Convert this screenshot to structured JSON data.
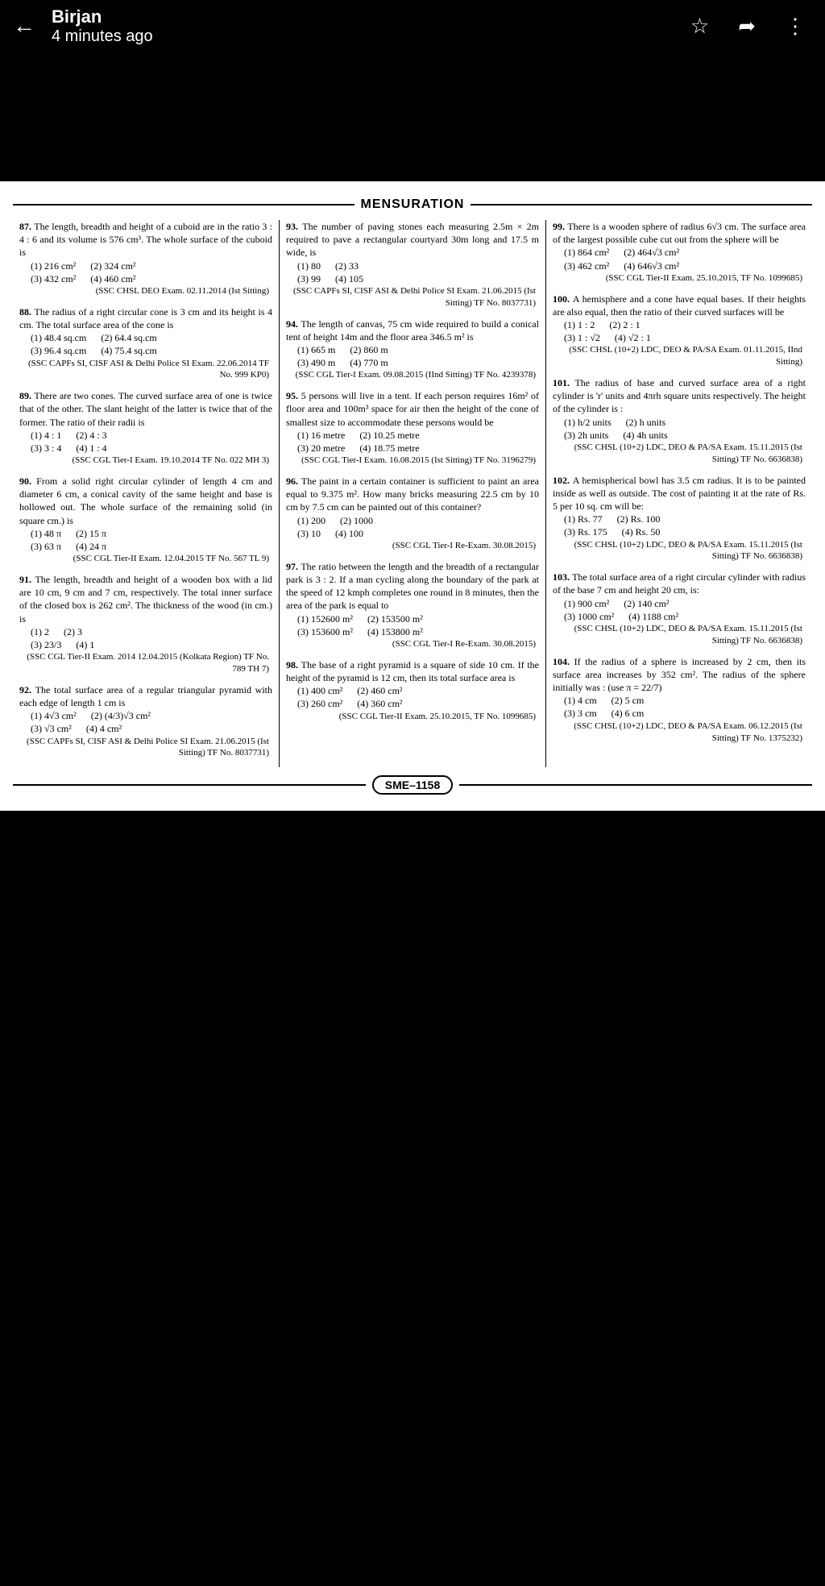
{
  "topbar": {
    "title": "Birjan",
    "time": "4 minutes ago"
  },
  "section_title": "MENSURATION",
  "footer": "SME–1158",
  "columns": [
    [
      {
        "num": "87.",
        "text": "The length, breadth and height of a cuboid are in the ratio 3 : 4 : 6 and its volume is 576 cm³. The whole surface of the cuboid is",
        "opts": [
          [
            "(1) 216 cm²",
            "(2) 324 cm²"
          ],
          [
            "(3) 432 cm²",
            "(4) 460 cm²"
          ]
        ],
        "source": "(SSC CHSL DEO Exam. 02.11.2014 (Ist Sitting)"
      },
      {
        "num": "88.",
        "text": "The radius of a right circular cone is 3 cm and its height is 4 cm. The total surface area of the cone is",
        "opts": [
          [
            "(1) 48.4 sq.cm",
            "(2) 64.4 sq.cm"
          ],
          [
            "(3) 96.4 sq.cm",
            "(4) 75.4 sq.cm"
          ]
        ],
        "source": "(SSC CAPFs SI, CISF ASI & Delhi Police SI Exam. 22.06.2014 TF No. 999 KP0)"
      },
      {
        "num": "89.",
        "text": "There are two cones. The curved surface area of one is twice that of the other. The slant height of the latter is twice that of the former. The ratio of their radii is",
        "opts": [
          [
            "(1) 4 : 1",
            "(2) 4 : 3"
          ],
          [
            "(3) 3 : 4",
            "(4) 1 : 4"
          ]
        ],
        "source": "(SSC CGL Tier-I Exam. 19.10.2014 TF No. 022 MH 3)"
      },
      {
        "num": "90.",
        "text": "From a solid right circular cylinder of length 4 cm and diameter 6 cm, a conical cavity of the same height and base is hollowed out. The whole surface of the remaining solid (in square cm.) is",
        "opts": [
          [
            "(1) 48 π",
            "(2) 15 π"
          ],
          [
            "(3) 63 π",
            "(4) 24 π"
          ]
        ],
        "source": "(SSC CGL Tier-II Exam. 12.04.2015 TF No. 567 TL 9)"
      },
      {
        "num": "91.",
        "text": "The length, breadth and height of a wooden box with a lid are 10 cm, 9 cm and 7 cm, respectively. The total inner surface of the closed box is 262 cm². The thickness of the wood (in cm.) is",
        "opts": [
          [
            "(1) 2",
            "(2) 3"
          ],
          [
            "(3) 23/3",
            "(4) 1"
          ]
        ],
        "source": "(SSC CGL Tier-II Exam. 2014 12.04.2015 (Kolkata Region) TF No. 789 TH 7)"
      },
      {
        "num": "92.",
        "text": "The total surface area of a regular triangular pyramid with each edge of length 1 cm is",
        "opts": [
          [
            "(1) 4√3 cm²",
            "(2) (4/3)√3 cm²"
          ],
          [
            "(3) √3 cm²",
            "(4) 4 cm²"
          ]
        ],
        "source": "(SSC CAPFs SI, CISF ASI & Delhi Police SI Exam. 21.06.2015 (Ist Sitting) TF No. 8037731)"
      }
    ],
    [
      {
        "num": "93.",
        "text": "The number of paving stones each measuring 2.5m × 2m required to pave a rectangular courtyard 30m long and 17.5 m wide, is",
        "opts": [
          [
            "(1) 80",
            "(2) 33"
          ],
          [
            "(3) 99",
            "(4) 105"
          ]
        ],
        "source": "(SSC CAPFs SI, CISF ASI & Delhi Police SI Exam. 21.06.2015 (Ist Sitting) TF No. 8037731)"
      },
      {
        "num": "94.",
        "text": "The length of canvas, 75 cm wide required to build a conical tent of height 14m and the floor area 346.5 m² is",
        "opts": [
          [
            "(1) 665 m",
            "(2) 860 m"
          ],
          [
            "(3) 490 m",
            "(4) 770 m"
          ]
        ],
        "source": "(SSC CGL Tier-I Exam. 09.08.2015 (IInd Sitting) TF No. 4239378)"
      },
      {
        "num": "95.",
        "text": "5 persons will live in a tent. If each person requires 16m² of floor area and 100m³ space for air then the height of the cone of smallest size to accommodate these persons would be",
        "opts": [
          [
            "(1) 16 metre",
            "(2) 10.25 metre"
          ],
          [
            "(3) 20 metre",
            "(4) 18.75 metre"
          ]
        ],
        "source": "(SSC CGL Tier-I Exam. 16.08.2015 (Ist Sitting) TF No. 3196279)"
      },
      {
        "num": "96.",
        "text": "The paint in a certain container is sufficient to paint an area equal to 9.375 m². How many bricks measuring 22.5 cm by 10 cm by 7.5 cm can be painted out of this container?",
        "opts": [
          [
            "(1) 200",
            "(2) 1000"
          ],
          [
            "(3) 10",
            "(4) 100"
          ]
        ],
        "source": "(SSC CGL Tier-I Re-Exam. 30.08.2015)"
      },
      {
        "num": "97.",
        "text": "The ratio between the length and the breadth of a rectangular park is 3 : 2. If a man cycling along the boundary of the park at the speed of 12 kmph completes one round in 8 minutes, then the area of the park is equal to",
        "opts": [
          [
            "(1) 152600 m²",
            "(2) 153500 m²"
          ],
          [
            "(3) 153600 m²",
            "(4) 153800 m²"
          ]
        ],
        "source": "(SSC CGL Tier-I Re-Exam. 30.08.2015)"
      },
      {
        "num": "98.",
        "text": "The base of a right pyramid is a square of side 10 cm. If the height of the pyramid is 12 cm, then its total surface area is",
        "opts": [
          [
            "(1) 400 cm²",
            "(2) 460 cm²"
          ],
          [
            "(3) 260 cm²",
            "(4) 360 cm²"
          ]
        ],
        "source": "(SSC CGL Tier-II Exam. 25.10.2015, TF No. 1099685)"
      }
    ],
    [
      {
        "num": "99.",
        "text": "There is a wooden sphere of radius 6√3 cm. The surface area of the largest possible cube cut out from the sphere will be",
        "opts": [
          [
            "(1) 864 cm²",
            "(2) 464√3 cm²"
          ],
          [
            "(3) 462 cm²",
            "(4) 646√3 cm²"
          ]
        ],
        "source": "(SSC CGL Tier-II Exam. 25.10.2015, TF No. 1099685)"
      },
      {
        "num": "100.",
        "text": "A hemisphere and a cone have equal bases. If their heights are also equal, then the ratio of their curved surfaces will be",
        "opts": [
          [
            "(1) 1 : 2",
            "(2) 2 : 1"
          ],
          [
            "(3) 1 : √2",
            "(4) √2 : 1"
          ]
        ],
        "source": "(SSC CHSL (10+2) LDC, DEO & PA/SA Exam. 01.11.2015, IInd Sitting)"
      },
      {
        "num": "101.",
        "text": "The radius of base and curved surface area of a right cylinder is 'r' units and 4πrh square units respectively. The height of the cylinder is :",
        "opts": [
          [
            "(1) h/2 units",
            "(2) h units"
          ],
          [
            "(3) 2h units",
            "(4) 4h units"
          ]
        ],
        "source": "(SSC CHSL (10+2) LDC, DEO & PA/SA Exam. 15.11.2015 (Ist Sitting) TF No. 6636838)"
      },
      {
        "num": "102.",
        "text": "A hemispherical bowl has 3.5 cm radius. It is to be painted inside as well as outside. The cost of painting it at the rate of Rs. 5 per 10 sq. cm will be:",
        "opts": [
          [
            "(1) Rs. 77",
            "(2) Rs. 100"
          ],
          [
            "(3) Rs. 175",
            "(4) Rs. 50"
          ]
        ],
        "source": "(SSC CHSL (10+2) LDC, DEO & PA/SA Exam. 15.11.2015 (Ist Sitting) TF No. 6636838)"
      },
      {
        "num": "103.",
        "text": "The total surface area of a right circular cylinder with radius of the base 7 cm and height 20 cm, is:",
        "opts": [
          [
            "(1) 900 cm²",
            "(2) 140 cm²"
          ],
          [
            "(3) 1000 cm²",
            "(4) 1188 cm²"
          ]
        ],
        "source": "(SSC CHSL (10+2) LDC, DEO & PA/SA Exam. 15.11.2015 (Ist Sitting) TF No. 6636838)"
      },
      {
        "num": "104.",
        "text": "If the radius of a sphere is increased by 2 cm, then its surface area increases by 352 cm². The radius of the sphere initially was : (use π = 22/7)",
        "opts": [
          [
            "(1) 4 cm",
            "(2) 5 cm"
          ],
          [
            "(3) 3 cm",
            "(4) 6 cm"
          ]
        ],
        "source": "(SSC CHSL (10+2) LDC, DEO & PA/SA Exam. 06.12.2015 (Ist Sitting) TF No. 1375232)"
      }
    ]
  ]
}
